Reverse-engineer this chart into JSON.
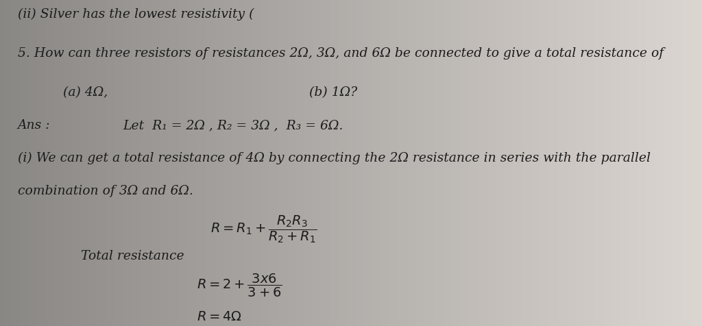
{
  "background_left": "#8a8880",
  "background_right": "#d8d6d2",
  "top_partial": "(ii) Silver has the lowest resistivity (",
  "question": "5. How can three resistors of resistances 2Ω, 3Ω, and 6Ω be connected to give a total resistance of",
  "part_a": "(a) 4Ω,",
  "part_b": "(b) 1Ω?",
  "ans_label": "Ans :",
  "let_line": "Let  R₁ = 2Ω , R₂ = 3Ω ,  R₃ = 6Ω.",
  "part_i_text": "(i) We can get a total resistance of 4Ω by connecting the 2Ω resistance in series with the parallel",
  "combination_text": "combination of 3Ω and 6Ω.",
  "total_resistance_label": "Total resistance",
  "result_line": "R = 4Ω",
  "font_color": "#1c1c1c",
  "font_size": 13.5
}
